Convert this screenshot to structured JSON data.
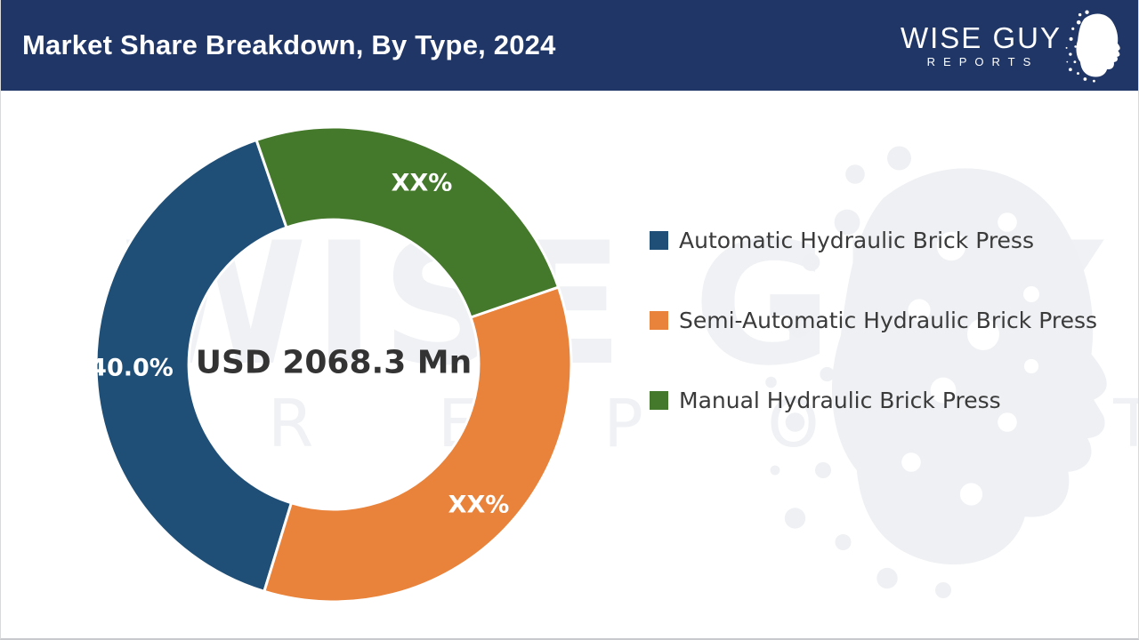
{
  "header": {
    "title": "Market Share Breakdown, By Type, 2024",
    "brand_name": "WISE GUY",
    "brand_sub": "REPORTS"
  },
  "chart_data": {
    "type": "donut",
    "title": "Market Share Breakdown, By Type, 2024",
    "center_label": "USD 2068.3 Mn",
    "start_angle_deg": 109,
    "direction": "counterclockwise",
    "inner_radius_ratio": 0.61,
    "legend_position": "right",
    "grid": false,
    "segments": [
      {
        "label": "Automatic Hydraulic Brick Press",
        "value_pct": 40.0,
        "display": "40.0%",
        "color": "#1f4f77"
      },
      {
        "label": "Semi-Automatic Hydraulic Brick Press",
        "value_pct": 35.0,
        "display": "XX%",
        "color": "#e9823a"
      },
      {
        "label": "Manual Hydraulic Brick Press",
        "value_pct": 25.0,
        "display": "XX%",
        "color": "#44782a"
      }
    ]
  },
  "watermark": {
    "brand_name": "WISE GUY",
    "brand_sub": "R E P O R T S"
  }
}
